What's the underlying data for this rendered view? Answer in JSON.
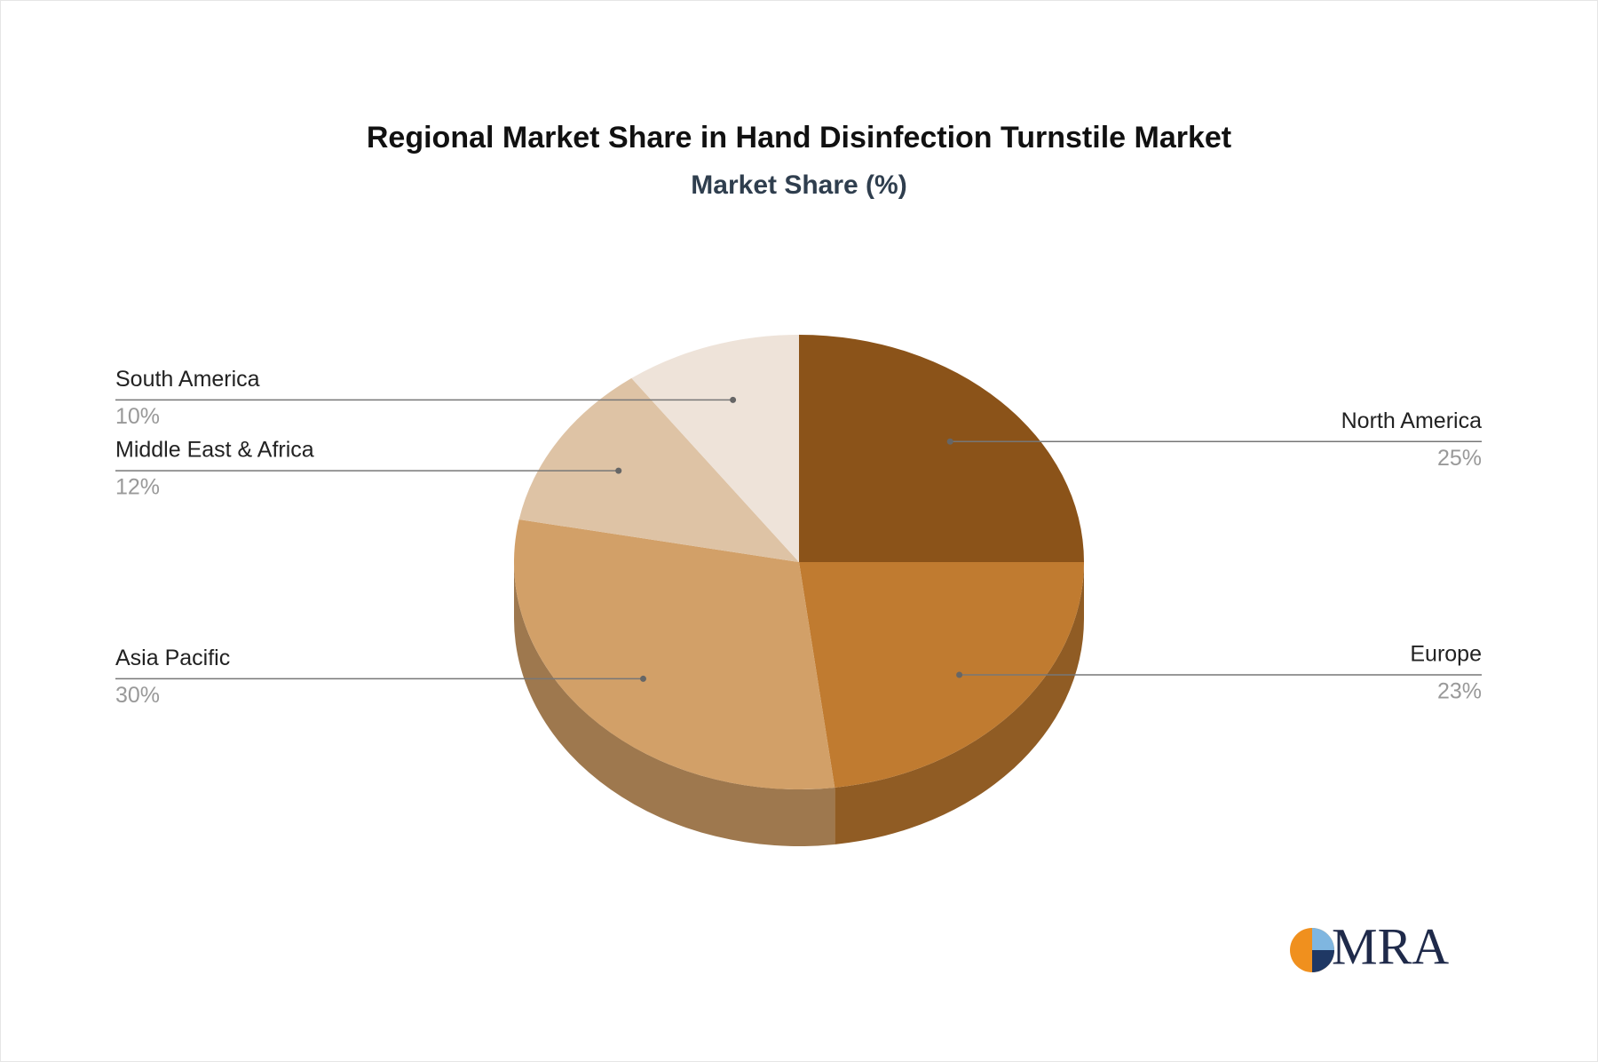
{
  "chart_data": {
    "type": "pie",
    "title": "Regional Market Share in Hand Disinfection Turnstile Market",
    "subtitle": "Market Share (%)",
    "categories": [
      "North America",
      "Europe",
      "Asia Pacific",
      "Middle East & Africa",
      "South America"
    ],
    "values": [
      25,
      23,
      30,
      12,
      10
    ],
    "value_labels": [
      "25%",
      "23%",
      "30%",
      "12%",
      "10%"
    ],
    "colors": [
      "#8b5319",
      "#c07b30",
      "#d2a068",
      "#dec3a5",
      "#eee3d9"
    ]
  },
  "logo": "MRA"
}
